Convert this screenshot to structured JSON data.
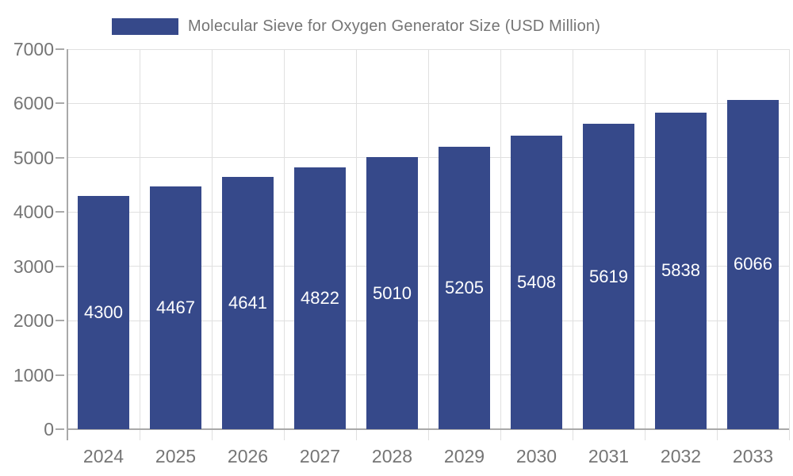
{
  "chart_data": {
    "type": "bar",
    "title": "Molecular Sieve for Oxygen Generator Size (USD Million)",
    "categories": [
      "2024",
      "2025",
      "2026",
      "2027",
      "2028",
      "2029",
      "2030",
      "2031",
      "2032",
      "2033"
    ],
    "values": [
      4300,
      4467,
      4641,
      4822,
      5010,
      5205,
      5408,
      5619,
      5838,
      6066
    ],
    "xlabel": "",
    "ylabel": "",
    "ylim": [
      0,
      7000
    ],
    "yticks": [
      0,
      1000,
      2000,
      3000,
      4000,
      5000,
      6000,
      7000
    ],
    "grid": true,
    "legend_position": "top",
    "bar_color": "#36498A",
    "value_label_color": "#FFFFFF",
    "grid_color": "#E0E0E0",
    "axis_color": "#A9A9A9",
    "text_color": "#757575",
    "background_color": "#FFFFFF"
  }
}
